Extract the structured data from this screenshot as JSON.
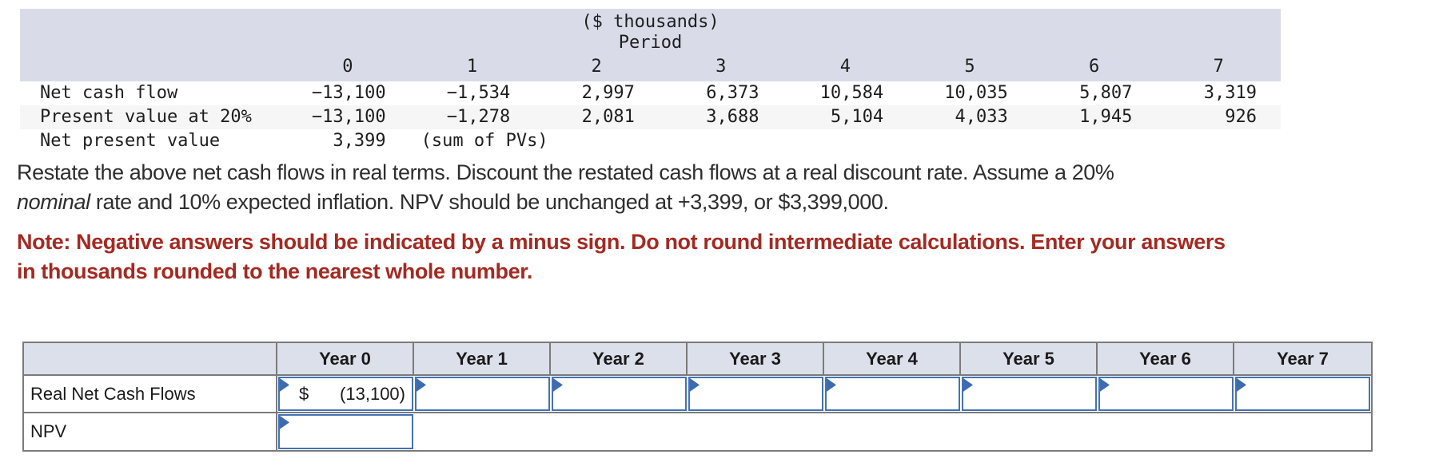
{
  "colors": {
    "header_band": "#d9dce8",
    "answer_header_band": "#dce0ea",
    "input_border_blue": "#4472b5",
    "marker_blue": "#3c6bb0",
    "note_red": "#a32a22",
    "grid_border_gray": "#7b7b7b"
  },
  "top_table": {
    "units_caption": "($ thousands)",
    "period_caption": "Period",
    "period_headers": [
      "0",
      "1",
      "2",
      "3",
      "4",
      "5",
      "6",
      "7"
    ],
    "rows": [
      {
        "label": "Net cash flow",
        "values": [
          "−13,100",
          "−1,534",
          "2,997",
          "6,373",
          "10,584",
          "10,035",
          "5,807",
          "3,319"
        ]
      },
      {
        "label": "Present value at 20%",
        "values": [
          "−13,100",
          "−1,278",
          "2,081",
          "3,688",
          "5,104",
          "4,033",
          "1,945",
          "926"
        ]
      },
      {
        "label": "Net present value",
        "value": "3,399",
        "note": "(sum of PVs)"
      }
    ]
  },
  "instructions": {
    "line1": "Restate the above net cash flows in real terms. Discount the restated cash flows at a real discount rate. Assume a 20%",
    "line2_italic": "nominal",
    "line2_rest": " rate and 10% expected inflation. NPV should be unchanged at +3,399, or $3,399,000.",
    "note_line1": "Note: Negative answers should be indicated by a minus sign. Do not round intermediate calculations. Enter your answers",
    "note_line2": "in thousands rounded to the nearest whole number."
  },
  "answer_table": {
    "column_headers": [
      "Year 0",
      "Year 1",
      "Year 2",
      "Year 3",
      "Year 4",
      "Year 5",
      "Year 6",
      "Year 7"
    ],
    "rows": [
      {
        "label": "Real Net Cash Flows",
        "year0_currency": "$",
        "year0_value": "(13,100)"
      },
      {
        "label": "NPV"
      }
    ]
  }
}
